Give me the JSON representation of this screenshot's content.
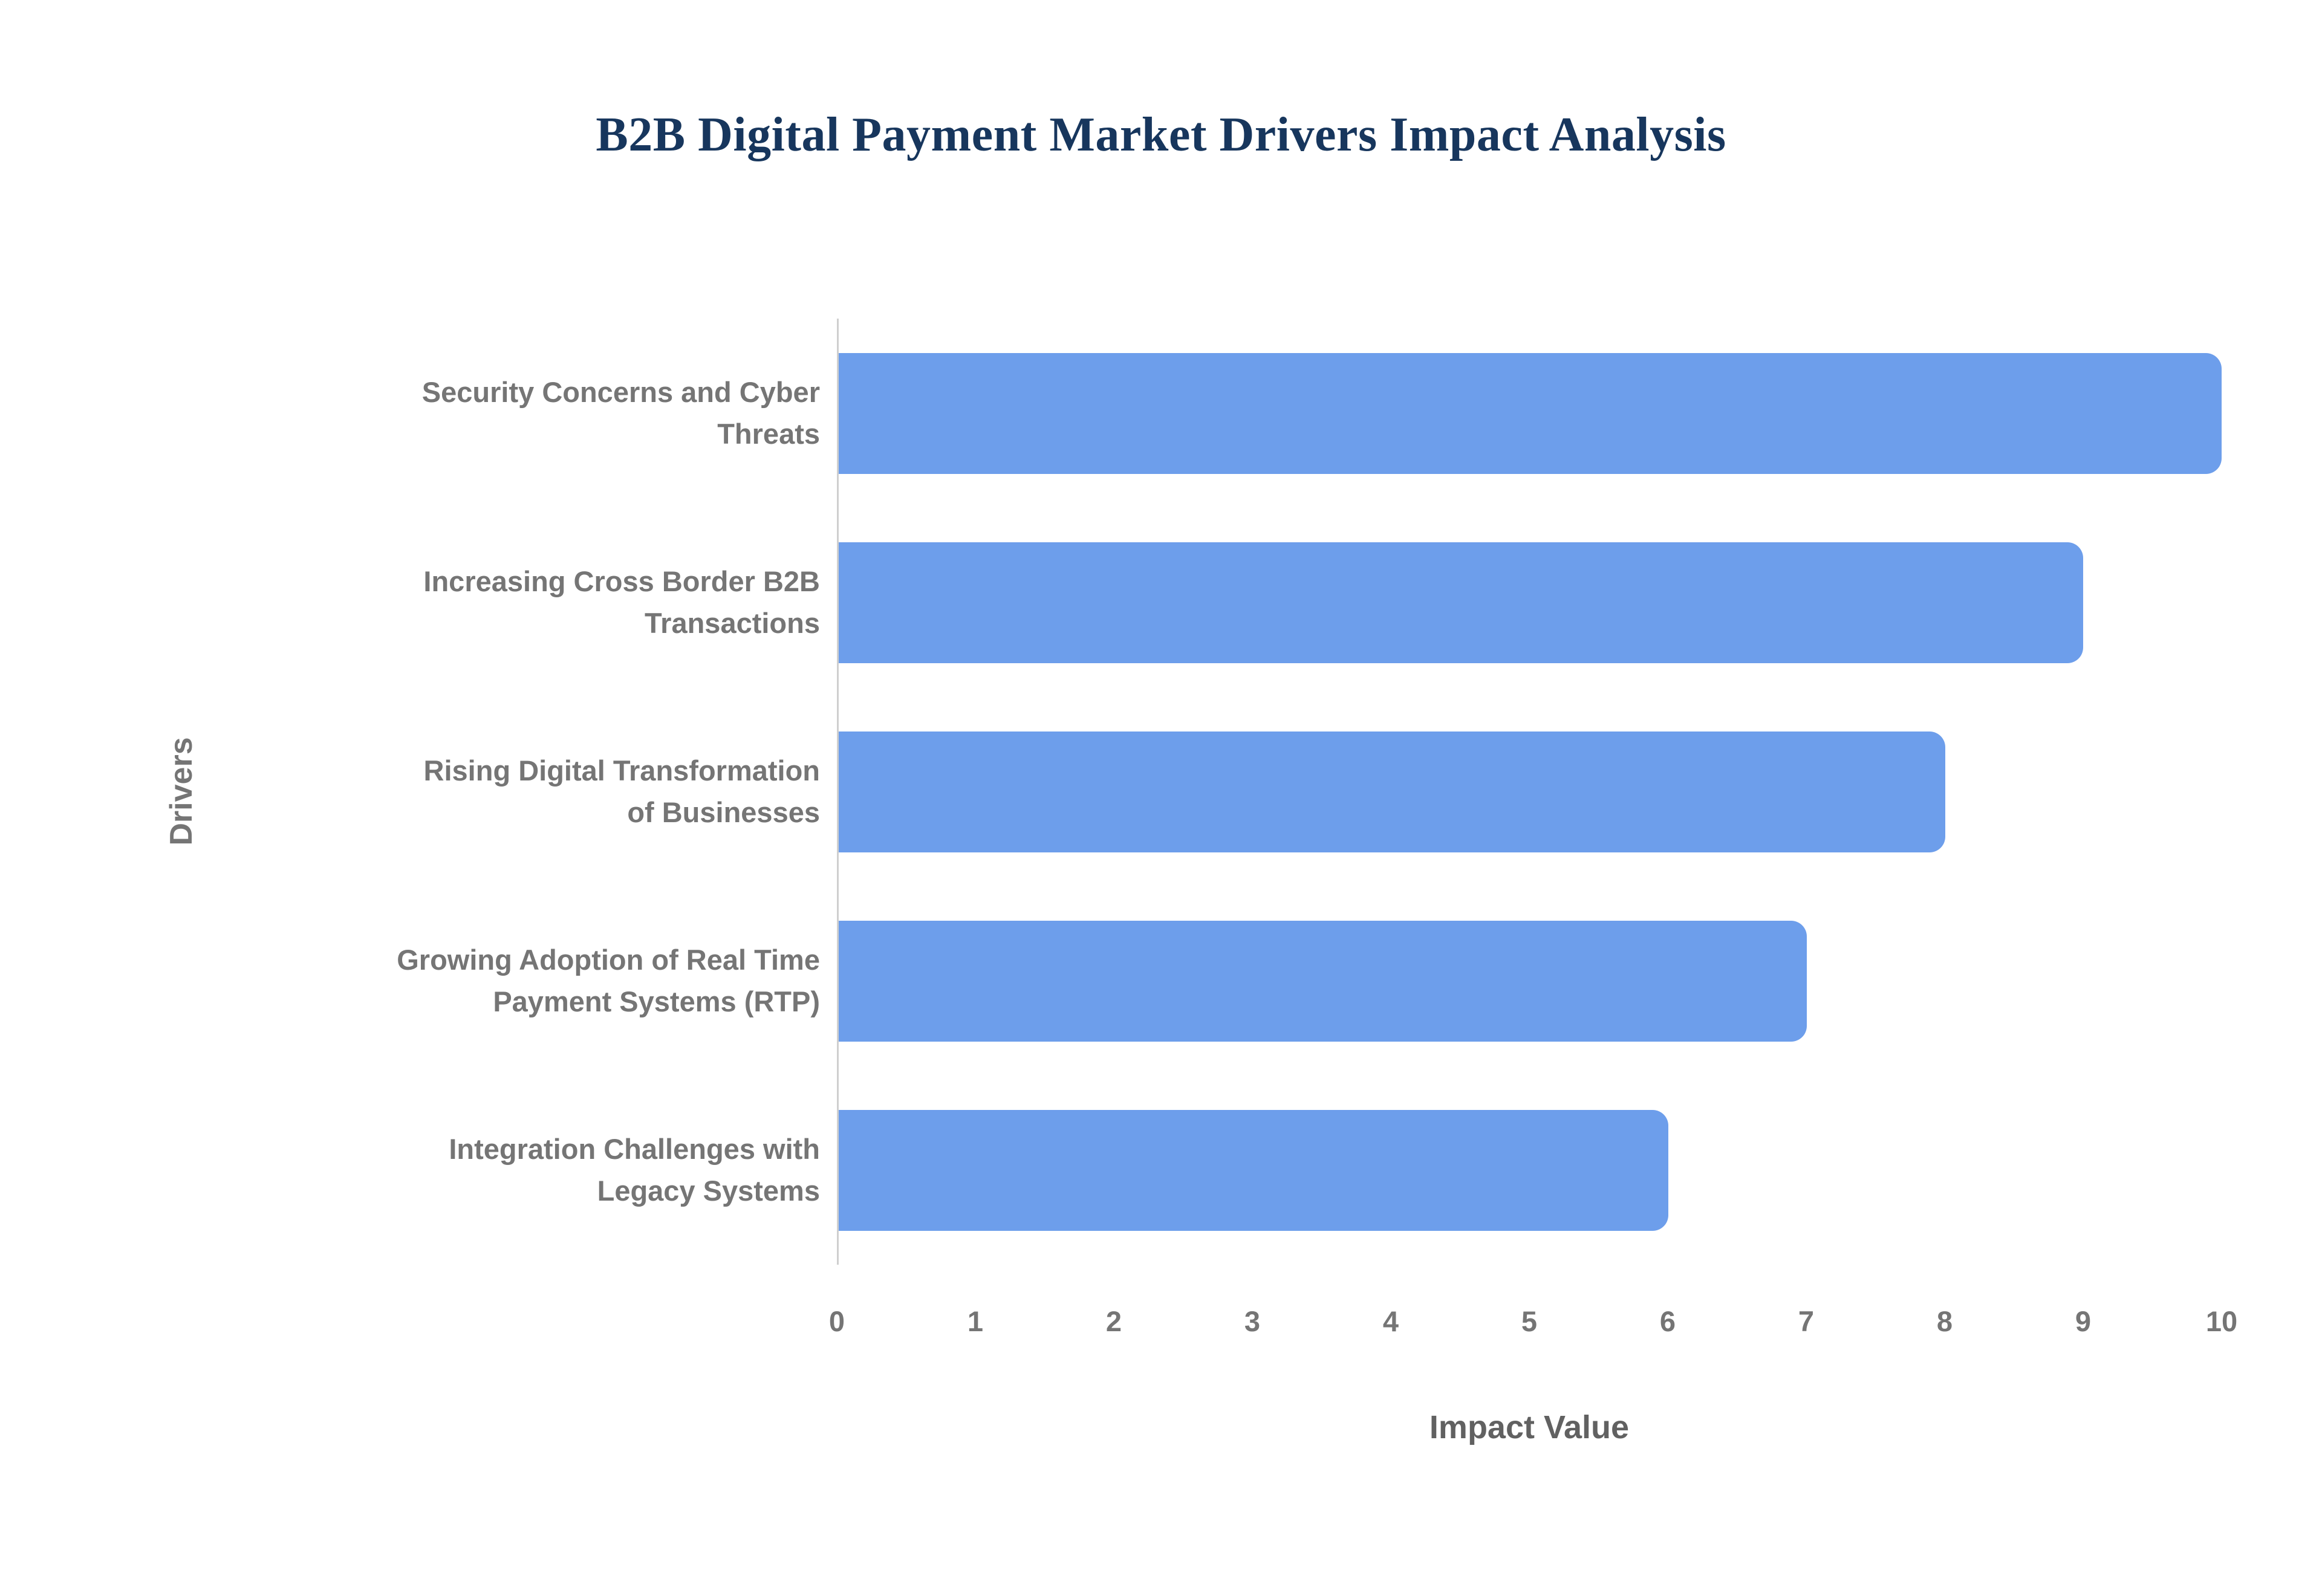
{
  "page": {
    "background_color": "#ffffff"
  },
  "chart_data": {
    "type": "bar",
    "orientation": "horizontal",
    "title": "B2B Digital Payment Market Drivers Impact Analysis",
    "xlabel": "Impact Value",
    "ylabel": "Drivers",
    "categories": [
      "Security Concerns and Cyber Threats",
      "Increasing Cross Border B2B Transactions",
      "Rising Digital Transformation of Businesses",
      "Growing Adoption of Real Time Payment Systems (RTP)",
      "Integration Challenges with Legacy Systems"
    ],
    "wrapped_labels": [
      "Security Concerns and Cyber\nThreats",
      "Increasing Cross Border B2B\nTransactions",
      "Rising Digital Transformation\nof Businesses",
      "Growing Adoption of Real Time\nPayment Systems (RTP)",
      "Integration Challenges with\nLegacy Systems"
    ],
    "values": [
      10,
      9,
      8,
      7,
      6
    ],
    "xlim": [
      0,
      10
    ],
    "ticks": [
      0,
      1,
      2,
      3,
      4,
      5,
      6,
      7,
      8,
      9,
      10
    ],
    "grid": false,
    "legend": "none",
    "bar_color": "#6D9EEB",
    "title_color": "#17365d",
    "axis_text_color": "#757575"
  }
}
